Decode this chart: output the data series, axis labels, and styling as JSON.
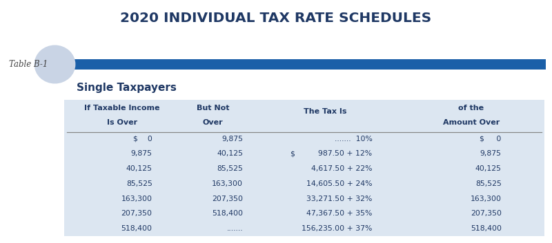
{
  "main_title": "2020 INDIVIDUAL TAX RATE SCHEDULES",
  "table_label": "Table B-1",
  "subtitle": "Single Taxpayers",
  "col_headers": [
    [
      "If Taxable Income",
      "Is Over"
    ],
    [
      "But Not",
      "Over"
    ],
    [
      "The Tax Is",
      ""
    ],
    [
      "of the",
      "Amount Over"
    ]
  ],
  "rows": [
    {
      "col1": "$    0",
      "col2": "9,875",
      "col3": ".......  10%",
      "col3_prefix": "",
      "col4": "$     0"
    },
    {
      "col1": "9,875",
      "col2": "40,125",
      "col3": "987.50 + 12%",
      "col3_prefix": "$",
      "col4": "9,875"
    },
    {
      "col1": "40,125",
      "col2": "85,525",
      "col3": "4,617.50 + 22%",
      "col3_prefix": "",
      "col4": "40,125"
    },
    {
      "col1": "85,525",
      "col2": "163,300",
      "col3": "14,605.50 + 24%",
      "col3_prefix": "",
      "col4": "85,525"
    },
    {
      "col1": "163,300",
      "col2": "207,350",
      "col3": "33,271.50 + 32%",
      "col3_prefix": "",
      "col4": "163,300"
    },
    {
      "col1": "207,350",
      "col2": "518,400",
      "col3": "47,367.50 + 35%",
      "col3_prefix": "",
      "col4": "207,350"
    },
    {
      "col1": "518,400",
      "col2": ".......",
      "col3": "156,235.00 + 37%",
      "col3_prefix": "",
      "col4": "518,400"
    }
  ],
  "bg_color": "#ffffff",
  "table_bg": "#dce6f1",
  "title_color": "#1f3864",
  "subtitle_color": "#1f3864",
  "table_label_color": "#444444",
  "bar_color": "#1a5fa8",
  "circle_color": "#c9d4e5",
  "text_color": "#1f3864",
  "row_text_color": "#1f3864",
  "line_color": "#888888"
}
